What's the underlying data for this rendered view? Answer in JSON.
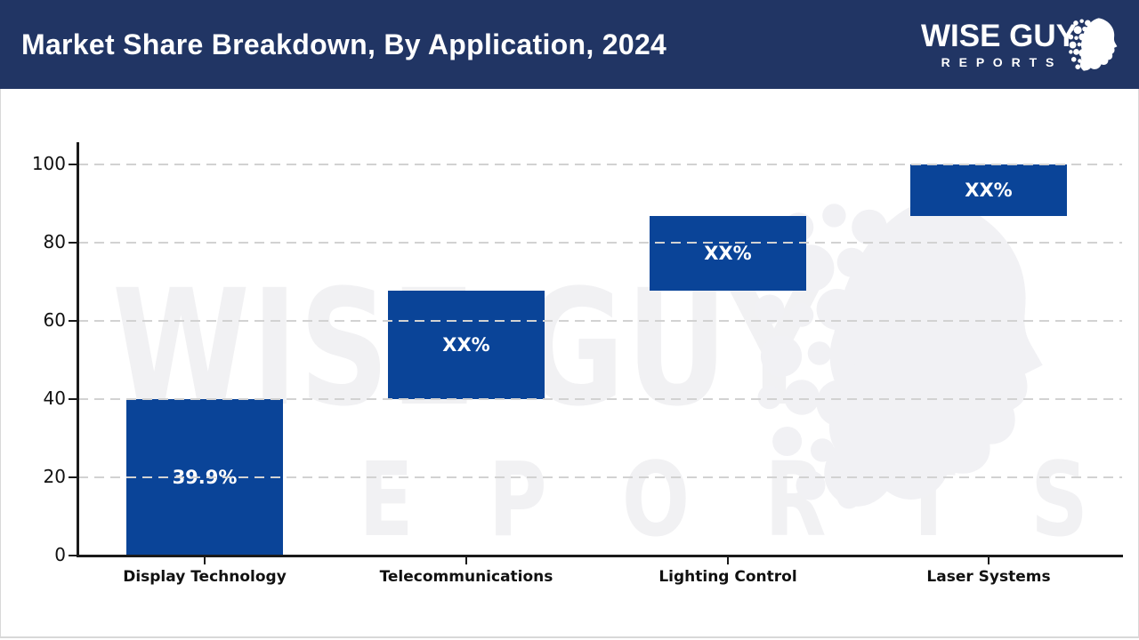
{
  "header": {
    "title": "Market Share Breakdown, By Application, 2024"
  },
  "logo": {
    "line1": "WISE GUY",
    "line2": "R E P O R T S"
  },
  "watermark": {
    "line1": "WISE GUY",
    "line2": "R E P O R T S"
  },
  "chart_data": {
    "type": "bar",
    "subtype": "waterfall",
    "title": "Market Share Breakdown, By Application, 2024",
    "categories": [
      "Display Technology",
      "Telecommunications",
      "Lighting Control",
      "Laser Systems"
    ],
    "bars": [
      {
        "category": "Display Technology",
        "start": 0,
        "end": 39.9,
        "label": "39.9%"
      },
      {
        "category": "Telecommunications",
        "start": 39.9,
        "end": 67.8,
        "label": "XX%"
      },
      {
        "category": "Lighting Control",
        "start": 67.8,
        "end": 86.8,
        "label": "XX%"
      },
      {
        "category": "Laser Systems",
        "start": 86.8,
        "end": 99.9,
        "label": "XX%"
      }
    ],
    "y_ticks": [
      0,
      20,
      40,
      60,
      80,
      100
    ],
    "ylim": [
      0,
      105
    ],
    "xlabel": "",
    "ylabel": "",
    "grid": "horizontal-dashed",
    "legend": "none",
    "bar_color": "#0a4498",
    "bar_label_color": "#ffffff"
  },
  "colors": {
    "header_bg": "#213564",
    "bar": "#0a4498",
    "grid": "#d2d2d2",
    "axis": "#1a1a1a",
    "watermark": "#f1f1f3",
    "frame_border": "#d8d8d8",
    "text": "#111111"
  }
}
